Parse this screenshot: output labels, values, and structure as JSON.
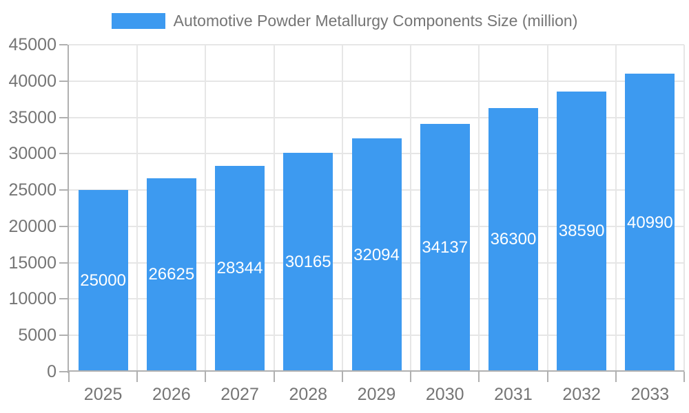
{
  "chart_data": {
    "type": "bar",
    "title": "Automotive Powder Metallurgy Components Size (million)",
    "legend": {
      "entries": [
        "Automotive Powder Metallurgy Components Size (million)"
      ],
      "position": "top"
    },
    "categories": [
      "2025",
      "2026",
      "2027",
      "2028",
      "2029",
      "2030",
      "2031",
      "2032",
      "2033"
    ],
    "values": [
      25000,
      26625,
      28344,
      30165,
      32094,
      34137,
      36300,
      38590,
      40990
    ],
    "data_labels": [
      "25000",
      "26625",
      "28344",
      "30165",
      "32094",
      "34137",
      "36300",
      "38590",
      "40990"
    ],
    "xlabel": "",
    "ylabel": "",
    "ylim": [
      0,
      45000
    ],
    "y_tick_step": 5000,
    "y_tick_labels": [
      "0",
      "5000",
      "10000",
      "15000",
      "20000",
      "25000",
      "30000",
      "35000",
      "40000",
      "45000"
    ],
    "grid": "horizontal and vertical gridlines on",
    "colors": {
      "bar": "#3D9AF0",
      "axis": "#b0b0b0",
      "gridline": "#e6e6e6",
      "text": "#757575",
      "bar_label_text": "#ffffff",
      "background": "#ffffff"
    }
  }
}
